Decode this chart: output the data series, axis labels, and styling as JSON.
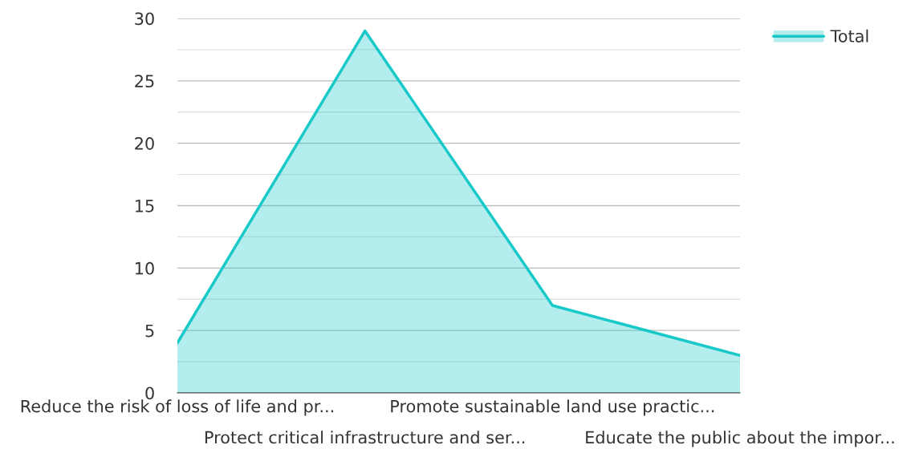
{
  "chart_data": {
    "type": "area",
    "categories": [
      "Reduce the risk of loss of life and pr...",
      "Protect critical infrastructure and ser...",
      "Promote sustainable land use practic...",
      "Educate the public about the impor..."
    ],
    "series": [
      {
        "name": "Total",
        "color": "#19c8c8",
        "values": [
          4,
          29,
          7,
          3
        ]
      }
    ],
    "ylim": [
      0,
      30
    ],
    "yticks": [
      0,
      {
        "value": 2.5,
        "label": null
      },
      5,
      {
        "value": 7.5,
        "label": null
      },
      10,
      {
        "value": 12.5,
        "label": null
      },
      15,
      {
        "value": 17.5,
        "label": null
      },
      20,
      {
        "value": 22.5,
        "label": null
      },
      25,
      {
        "value": 27.5,
        "label": null
      },
      30
    ],
    "grid": "y",
    "legend": "top right"
  }
}
